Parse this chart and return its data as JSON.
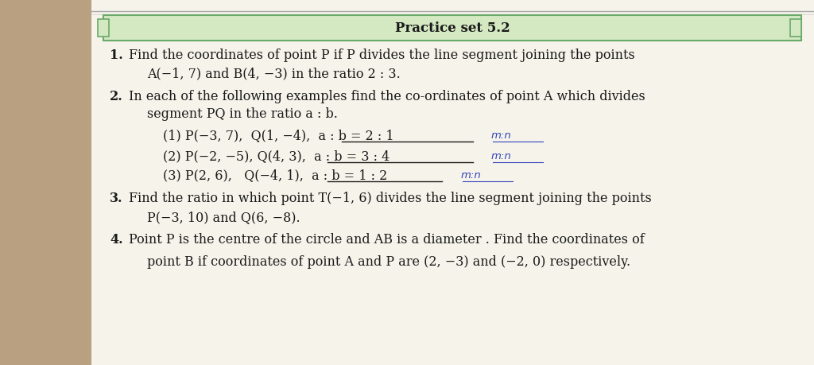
{
  "title": "Practice set 5.2",
  "title_bg": "#d4e8c2",
  "title_border": "#6aaa6a",
  "page_bg": "#f0ede0",
  "content_bg": "#f5f3ea",
  "left_bg": "#b8a080",
  "text_color": "#1a1a1a",
  "num_color": "#1a1a1a",
  "mn_color": "#3344bb",
  "underline_color": "#1a1a1a",
  "mn_line_color": "#3344bb",
  "title_fontsize": 12,
  "body_fontsize": 11.5,
  "line1_text": "Find the coordinates of point P if P divides the line segment joining the points",
  "line2_text": "A(−1, 7) and B(4, −3) in the ratio 2 : 3.",
  "line3_text": "In each of the following examples find the co-ordinates of point A which divides",
  "line4_text": "segment PQ in the ratio a : b.",
  "line5_text": "(1) P(−3, 7),  Q(1, −4),  a : b = 2 : 1",
  "line6_text": "(2) P(−2, −5), Q(4, 3),  a : b = 3 : 4",
  "line7_text": "(3) P(2, 6),   Q(−4, 1),  a : b = 1 : 2",
  "line8_text": "Find the ratio in which point T(−1, 6) divides the line segment joining the points",
  "line9_text": "P(−3, 10) and Q(6, −8).",
  "line10_text": "Point P is the centre of the circle and AB is a diameter . Find the coordinates of",
  "line11_text": "point B if coordinates of point A and P are (2, −3) and (−2, 0) respectively."
}
